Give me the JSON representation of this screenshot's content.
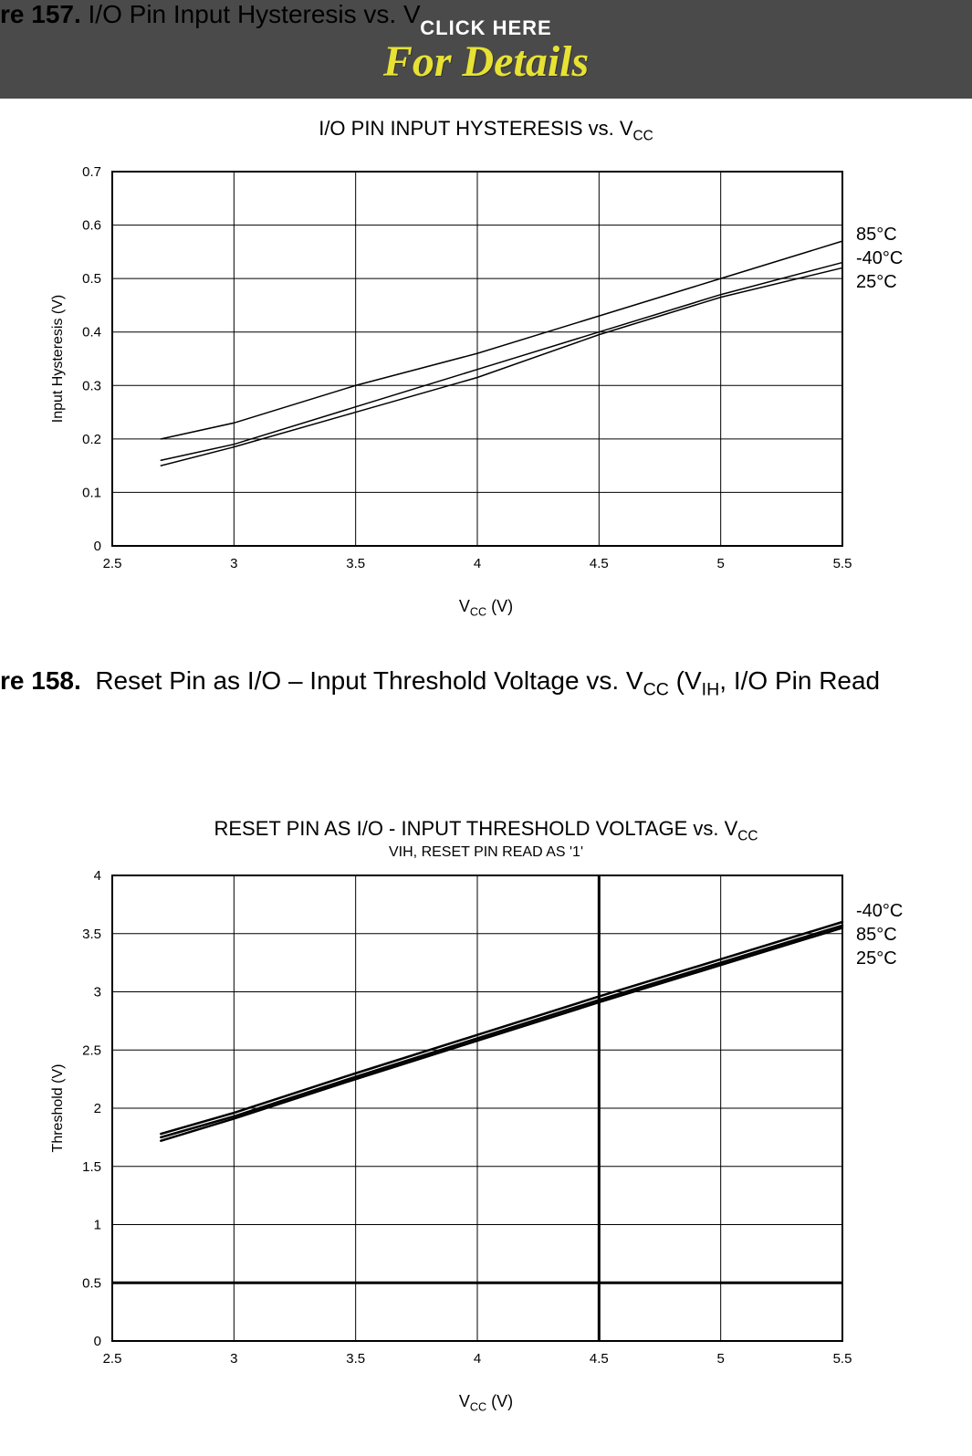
{
  "banner": {
    "bg_color": "#4a4a4a",
    "click_here": "CLICK HERE",
    "click_here_color": "#ffffff",
    "click_here_fontsize": 22,
    "for_details": "For Details",
    "for_details_color": "#e7e233",
    "for_details_fontsize": 48
  },
  "fig157": {
    "caption_prefix": "re 157.",
    "caption_text": "I/O Pin Input Hysteresis vs. V",
    "chart_title": "I/O PIN INPUT HYSTERESIS vs. V",
    "chart_title_sub": "CC",
    "title_fontsize": 22,
    "xlabel": "V",
    "xlabel_sub": "CC",
    "xlabel_suffix": " (V)",
    "ylabel": "Input Hysteresis (V)",
    "label_fontsize": 16,
    "tick_fontsize": 15,
    "xlim": [
      2.5,
      5.5
    ],
    "ylim": [
      0,
      0.7
    ],
    "xticks": [
      2.5,
      3,
      3.5,
      4,
      4.5,
      5,
      5.5
    ],
    "yticks": [
      0,
      0.1,
      0.2,
      0.3,
      0.4,
      0.5,
      0.6,
      0.7
    ],
    "grid_color": "#000000",
    "background_color": "#ffffff",
    "border_color": "#000000",
    "line_width": 1.5,
    "series": [
      {
        "label": "85°C",
        "color": "#000000",
        "x": [
          2.7,
          3.0,
          3.5,
          4.0,
          4.5,
          5.0,
          5.5
        ],
        "y": [
          0.2,
          0.23,
          0.3,
          0.36,
          0.43,
          0.5,
          0.57
        ]
      },
      {
        "label": "-40°C",
        "color": "#000000",
        "x": [
          2.7,
          3.0,
          3.5,
          4.0,
          4.5,
          5.0,
          5.5
        ],
        "y": [
          0.16,
          0.19,
          0.26,
          0.33,
          0.4,
          0.47,
          0.53
        ]
      },
      {
        "label": "25°C",
        "color": "#000000",
        "x": [
          2.7,
          3.0,
          3.5,
          4.0,
          4.5,
          5.0,
          5.5
        ],
        "y": [
          0.15,
          0.185,
          0.25,
          0.315,
          0.395,
          0.465,
          0.52
        ]
      }
    ],
    "legend_labels": [
      "85°C",
      "-40°C",
      "25°C"
    ],
    "legend_fontsize": 20,
    "legend_color": "#000000"
  },
  "fig158": {
    "caption_prefix": "re 158.",
    "caption_text_a": "Reset Pin as I/O – Input Threshold Voltage vs. V",
    "caption_text_b": " (V",
    "caption_text_c": ", I/O Pin Read",
    "caption_sub1": "CC",
    "caption_sub2": "IH",
    "chart_title": "RESET PIN AS I/O - INPUT THRESHOLD VOLTAGE vs. V",
    "chart_title_sub": "CC",
    "chart_subtitle": "VIH, RESET PIN READ AS '1'",
    "title_fontsize": 22,
    "subtitle_fontsize": 16,
    "xlabel": "V",
    "xlabel_sub": "CC",
    "xlabel_suffix": " (V)",
    "ylabel": "Threshold (V)",
    "label_fontsize": 16,
    "tick_fontsize": 15,
    "xlim": [
      2.5,
      5.5
    ],
    "ylim": [
      0,
      4
    ],
    "xticks": [
      2.5,
      3,
      3.5,
      4,
      4.5,
      5,
      5.5
    ],
    "yticks": [
      0,
      0.5,
      1,
      1.5,
      2,
      2.5,
      3,
      3.5,
      4
    ],
    "grid_color": "#000000",
    "background_color": "#ffffff",
    "border_color": "#000000",
    "line_width": 2.5,
    "special_vline_x": 4.5,
    "special_vline_width": 3,
    "special_hline_y": 0.5,
    "special_hline_width": 3,
    "series": [
      {
        "label": "-40°C",
        "color": "#000000",
        "x": [
          2.7,
          3.0,
          3.5,
          4.0,
          4.5,
          5.0,
          5.5
        ],
        "y": [
          1.78,
          1.96,
          2.3,
          2.63,
          2.96,
          3.28,
          3.6
        ]
      },
      {
        "label": "85°C",
        "color": "#000000",
        "x": [
          2.7,
          3.0,
          3.5,
          4.0,
          4.5,
          5.0,
          5.5
        ],
        "y": [
          1.72,
          1.91,
          2.25,
          2.58,
          2.91,
          3.23,
          3.55
        ]
      },
      {
        "label": "25°C",
        "color": "#000000",
        "x": [
          2.7,
          3.0,
          3.5,
          4.0,
          4.5,
          5.0,
          5.5
        ],
        "y": [
          1.75,
          1.93,
          2.27,
          2.6,
          2.93,
          3.25,
          3.57
        ]
      }
    ],
    "legend_labels": [
      "-40°C",
      "85°C",
      "25°C"
    ],
    "legend_fontsize": 20,
    "legend_color": "#000000"
  }
}
